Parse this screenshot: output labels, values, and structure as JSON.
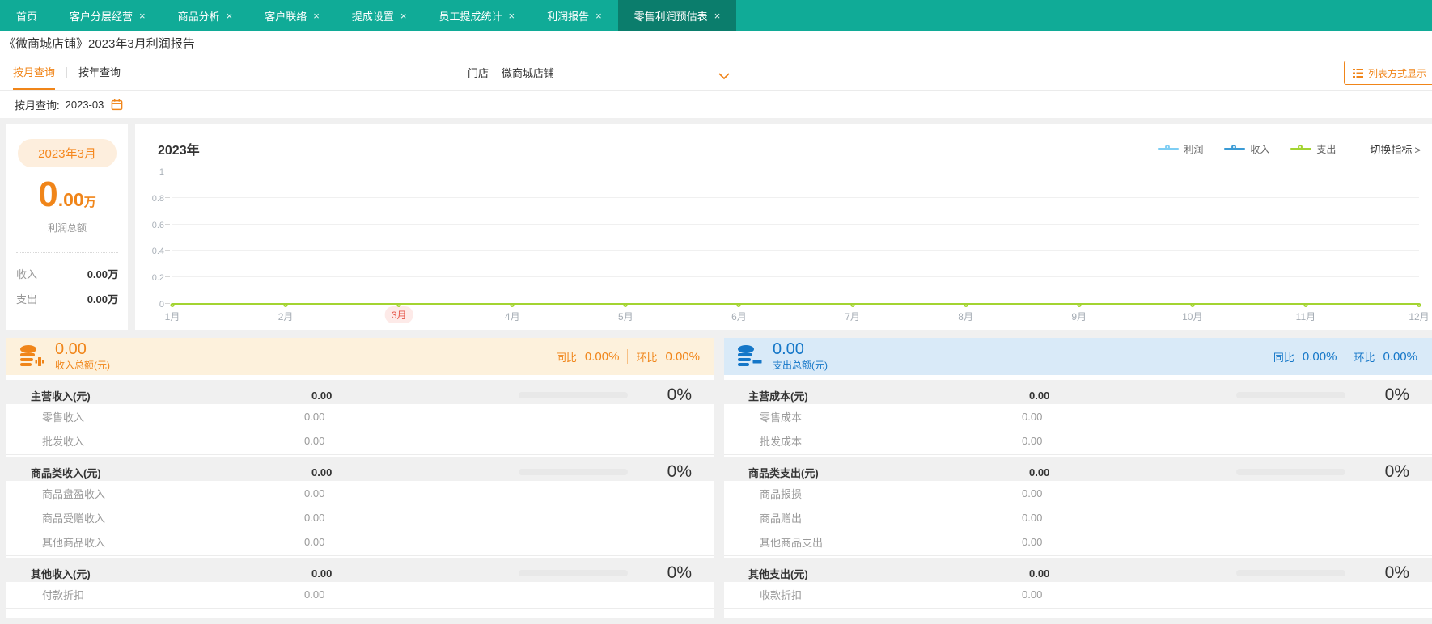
{
  "colors": {
    "teal": "#10ab97",
    "teal_active": "#0b7d6c",
    "orange": "#f08519",
    "orange_bg": "#fdf1dc",
    "blue": "#1577c8",
    "blue_bg": "#d9eaf8",
    "green": "#a3d431",
    "red": "#e6584b"
  },
  "tabbar": {
    "tabs": [
      {
        "label": "首页",
        "closable": false,
        "active": false
      },
      {
        "label": "客户分层经营",
        "closable": true,
        "active": false
      },
      {
        "label": "商品分析",
        "closable": true,
        "active": false
      },
      {
        "label": "客户联络",
        "closable": true,
        "active": false
      },
      {
        "label": "提成设置",
        "closable": true,
        "active": false
      },
      {
        "label": "员工提成统计",
        "closable": true,
        "active": false
      },
      {
        "label": "利润报告",
        "closable": true,
        "active": false
      },
      {
        "label": "零售利润预估表",
        "closable": true,
        "active": true
      }
    ]
  },
  "header": {
    "title": "《微商城店铺》2023年3月利润报告"
  },
  "filters": {
    "query_tabs": [
      {
        "label": "按月查询",
        "active": true
      },
      {
        "label": "按年查询",
        "active": false
      }
    ],
    "store_label": "门店",
    "store_value": "微商城店铺",
    "list_view_button": "列表方式显示",
    "date_label": "按月查询:",
    "date_value": "2023-03"
  },
  "summary": {
    "period": "2023年3月",
    "amount_int": "0",
    "amount_dec": ".00",
    "amount_unit": "万",
    "caption": "利润总额",
    "rows": [
      {
        "label": "收入",
        "value": "0.00万"
      },
      {
        "label": "支出",
        "value": "0.00万"
      }
    ]
  },
  "chart_data": {
    "type": "line",
    "title": "2023年",
    "categories": [
      "1月",
      "2月",
      "3月",
      "4月",
      "5月",
      "6月",
      "7月",
      "8月",
      "9月",
      "10月",
      "11月",
      "12月"
    ],
    "highlight_category": "3月",
    "series": [
      {
        "name": "利润",
        "color": "#7ecef4",
        "values": [
          0,
          0,
          0,
          0,
          0,
          0,
          0,
          0,
          0,
          0,
          0,
          0
        ]
      },
      {
        "name": "收入",
        "color": "#3b9bd5",
        "values": [
          0,
          0,
          0,
          0,
          0,
          0,
          0,
          0,
          0,
          0,
          0,
          0
        ]
      },
      {
        "name": "支出",
        "color": "#a3d431",
        "values": [
          0,
          0,
          0,
          0,
          0,
          0,
          0,
          0,
          0,
          0,
          0,
          0
        ]
      }
    ],
    "ylim": [
      0,
      1
    ],
    "yticks": [
      0,
      0.2,
      0.4,
      0.6,
      0.8,
      1
    ],
    "ytick_labels": [
      "0",
      "0.2",
      "0.4",
      "0.6",
      "0.8",
      "1"
    ],
    "grid": true,
    "legend_position": "top-right",
    "switch_label": "切换指标"
  },
  "income_panel": {
    "total": "0.00",
    "label": "收入总额(元)",
    "yoy_label": "同比",
    "yoy_value": "0.00%",
    "mom_label": "环比",
    "mom_value": "0.00%",
    "rows": [
      {
        "label": "主营收入(元)",
        "value": "0.00",
        "percent": "0%",
        "type": "main",
        "divider_before": false
      },
      {
        "label": "零售收入",
        "value": "0.00",
        "type": "sub"
      },
      {
        "label": "批发收入",
        "value": "0.00",
        "type": "sub"
      },
      {
        "label": "商品类收入(元)",
        "value": "0.00",
        "percent": "0%",
        "type": "main",
        "divider_before": true
      },
      {
        "label": "商品盘盈收入",
        "value": "0.00",
        "type": "sub"
      },
      {
        "label": "商品受赠收入",
        "value": "0.00",
        "type": "sub"
      },
      {
        "label": "其他商品收入",
        "value": "0.00",
        "type": "sub"
      },
      {
        "label": "其他收入(元)",
        "value": "0.00",
        "percent": "0%",
        "type": "main",
        "divider_before": true
      },
      {
        "label": "付款折扣",
        "value": "0.00",
        "type": "sub"
      }
    ]
  },
  "expense_panel": {
    "total": "0.00",
    "label": "支出总额(元)",
    "yoy_label": "同比",
    "yoy_value": "0.00%",
    "mom_label": "环比",
    "mom_value": "0.00%",
    "rows": [
      {
        "label": "主营成本(元)",
        "value": "0.00",
        "percent": "0%",
        "type": "main",
        "divider_before": false
      },
      {
        "label": "零售成本",
        "value": "0.00",
        "type": "sub"
      },
      {
        "label": "批发成本",
        "value": "0.00",
        "type": "sub"
      },
      {
        "label": "商品类支出(元)",
        "value": "0.00",
        "percent": "0%",
        "type": "main",
        "divider_before": true
      },
      {
        "label": "商品报损",
        "value": "0.00",
        "type": "sub"
      },
      {
        "label": "商品赠出",
        "value": "0.00",
        "type": "sub"
      },
      {
        "label": "其他商品支出",
        "value": "0.00",
        "type": "sub"
      },
      {
        "label": "其他支出(元)",
        "value": "0.00",
        "percent": "0%",
        "type": "main",
        "divider_before": true
      },
      {
        "label": "收款折扣",
        "value": "0.00",
        "type": "sub"
      }
    ]
  }
}
